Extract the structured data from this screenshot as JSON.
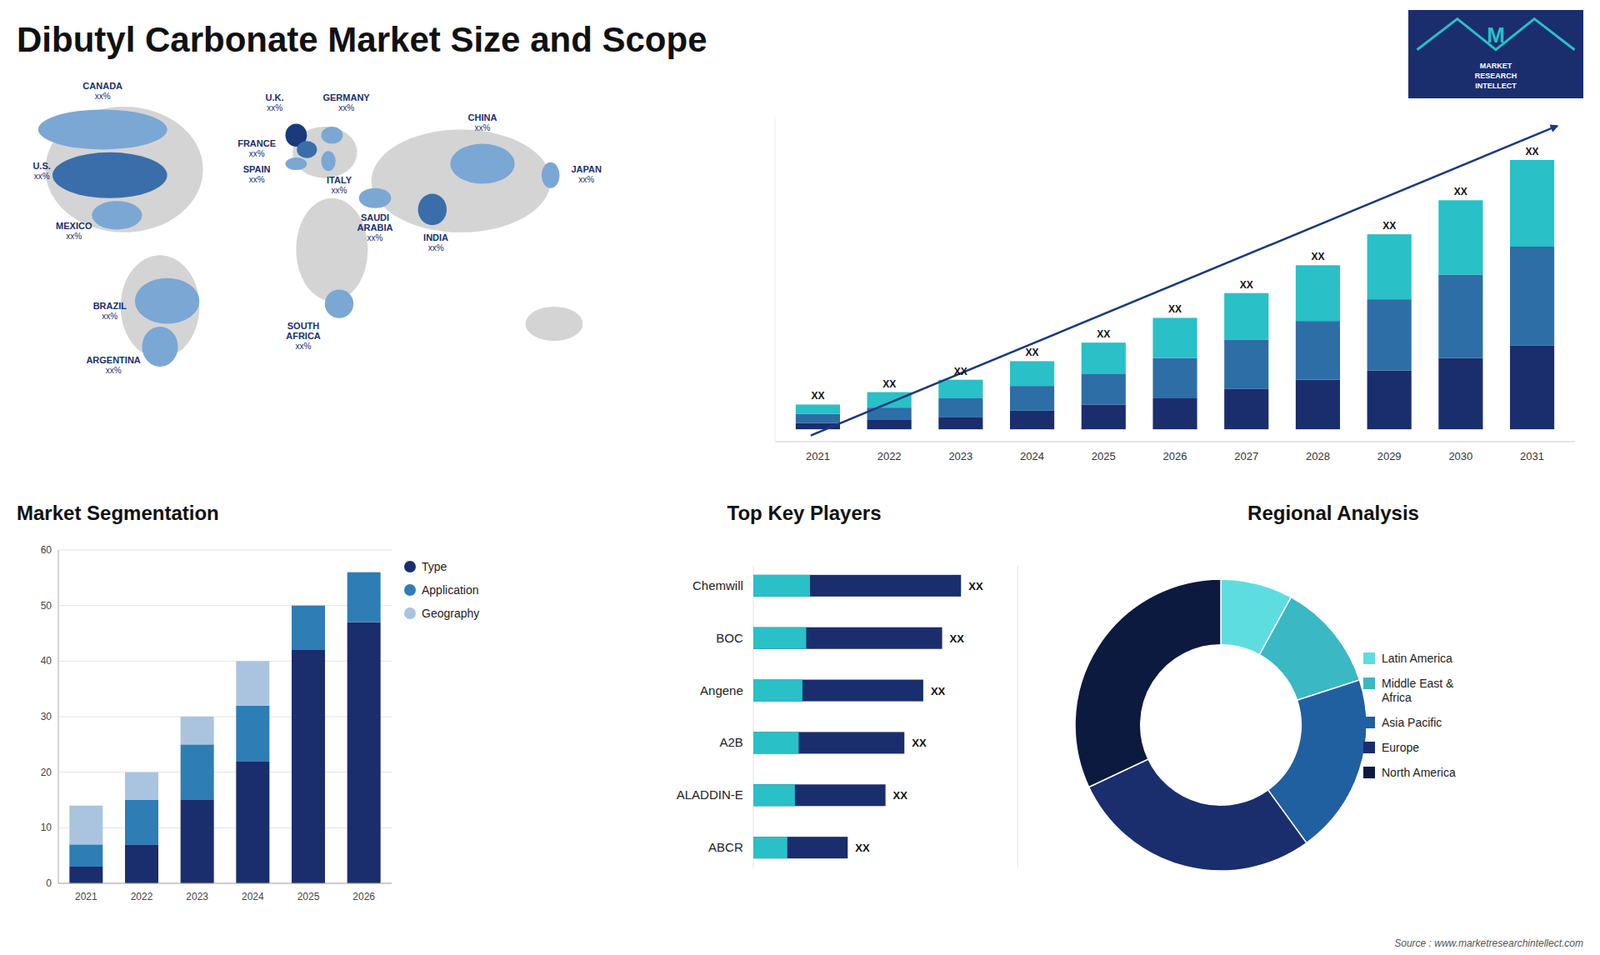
{
  "chart_data": [
    {
      "type": "map",
      "title": "Dibutyl Carbonate Market Size and Scope",
      "categories": [
        "CANADA",
        "U.S.",
        "MEXICO",
        "BRAZIL",
        "ARGENTINA",
        "U.K.",
        "FRANCE",
        "SPAIN",
        "GERMANY",
        "ITALY",
        "SAUDI\nARABIA",
        "SOUTH\nAFRICA",
        "CHINA",
        "INDIA",
        "JAPAN"
      ],
      "annotations": [
        "xx%",
        "xx%",
        "xx%",
        "xx%",
        "xx%",
        "xx%",
        "xx%",
        "xx%",
        "xx%",
        "xx%",
        "xx%",
        "xx%",
        "xx%",
        "xx%",
        "xx%"
      ]
    },
    {
      "type": "bar",
      "stacked": true,
      "categories": [
        "2021",
        "2022",
        "2023",
        "2024",
        "2025",
        "2026",
        "2027",
        "2028",
        "2029",
        "2030",
        "2031"
      ],
      "series": [
        {
          "color": "#1a2e6e",
          "values": [
            2,
            3,
            4,
            6,
            8,
            10,
            13,
            16,
            19,
            23,
            27
          ]
        },
        {
          "color": "#2e6ea6",
          "values": [
            3,
            4,
            6,
            8,
            10,
            13,
            16,
            19,
            23,
            27,
            32
          ]
        },
        {
          "color": "#29c0c7",
          "values": [
            3,
            5,
            6,
            8,
            10,
            13,
            15,
            18,
            21,
            24,
            28
          ]
        }
      ],
      "ylim": [
        -4,
        101
      ],
      "tick_labels": "x",
      "annotations": [
        "XX",
        "XX",
        "XX",
        "XX",
        "XX",
        "XX",
        "XX",
        "XX",
        "XX",
        "XX",
        "XX",
        "M",
        "MARKET\nRESEARCH\nINTELLECT",
        "Source : www.marketresearchintellect.com"
      ]
    },
    {
      "type": "bar",
      "title": "Market Segmentation",
      "stacked": true,
      "categories": [
        "2021",
        "2022",
        "2023",
        "2024",
        "2025",
        "2026"
      ],
      "series": [
        {
          "name": "Type",
          "color": "#1a2e6e",
          "values": [
            3,
            7,
            15,
            22,
            42,
            47
          ]
        },
        {
          "name": "Application",
          "color": "#2e7db5",
          "values": [
            4,
            8,
            10,
            10,
            8,
            9
          ]
        },
        {
          "name": "Geography",
          "color": "#aac4e0",
          "values": [
            7,
            5,
            5,
            8,
            0,
            0
          ]
        }
      ],
      "ylim": [
        0,
        60
      ],
      "yticks": [
        0,
        10,
        20,
        30,
        40,
        50,
        60
      ],
      "grid": true,
      "legend": "right"
    },
    {
      "type": "bar",
      "title": "Top Key Players",
      "orientation": "horizontal",
      "stacked": false,
      "categories": [
        "Chemwill",
        "BOC",
        "Angene",
        "A2B",
        "ALADDIN-E",
        "ABCR"
      ],
      "series": [
        {
          "color": "#1a2e6e",
          "values": [
            55,
            50,
            45,
            40,
            35,
            25
          ]
        },
        {
          "color": "#29c0c7",
          "values": [
            15,
            14,
            13,
            12,
            11,
            9
          ]
        }
      ],
      "xlim": [
        0,
        70
      ],
      "tick_labels": false,
      "annotations": [
        "XX",
        "XX",
        "XX",
        "XX",
        "XX",
        "XX"
      ]
    },
    {
      "type": "pie",
      "title": "Regional Analysis",
      "categories": [
        "Latin America",
        "Middle East &\nAfrica",
        "Asia Pacific",
        "Europe",
        "North America"
      ],
      "values": [
        8,
        12,
        20,
        28,
        32
      ],
      "colors": [
        "#5edde0",
        "#3ab8c4",
        "#2060a0",
        "#1a2e6e",
        "#0d1a40"
      ],
      "legend": "right"
    }
  ]
}
